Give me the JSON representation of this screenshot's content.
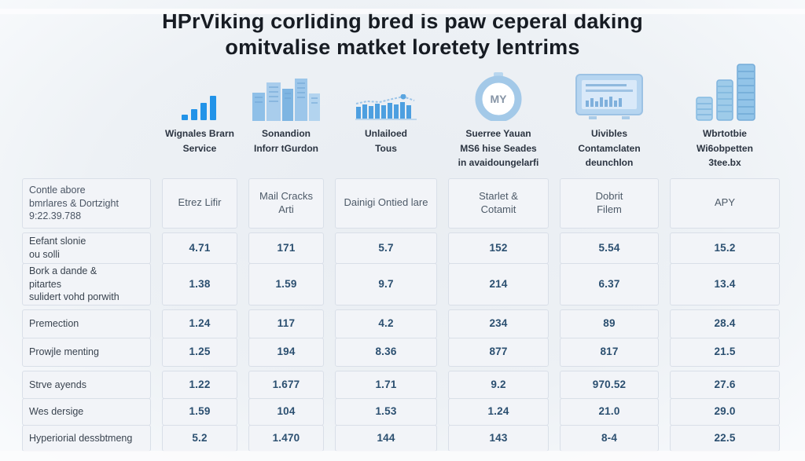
{
  "title": {
    "line1": "HPrViking corliding bred is paw ceperal daking",
    "line2": "omitvalise matket loretety lentrims"
  },
  "features": [
    {
      "name": "feature-wignales-brarn-service",
      "icon": "signal-bars-icon",
      "label": "Wignales Brarn\nService"
    },
    {
      "name": "feature-sonandion",
      "icon": "city-buildings-icon",
      "label": "Sonandion\nInforr tGurdon"
    },
    {
      "name": "feature-unlailoed-tous",
      "icon": "bar-line-chart-icon",
      "label": "Unlailoed\nTous"
    },
    {
      "name": "feature-suerree-yauan",
      "icon": "stopwatch-icon",
      "label": "Suerree Yauan\nMS6 hise Seades\nin avaidoungelarfi"
    },
    {
      "name": "feature-uivibles",
      "icon": "monitor-chart-icon",
      "label": "Uivibles\nContamclaten\ndeunchlon"
    },
    {
      "name": "feature-wbrtotbie",
      "icon": "rising-stacks-icon",
      "label": "Wbrtotbie\nWi6obpetten\n3tee.bx"
    }
  ],
  "stopwatch_text": "MY",
  "chart_data": {
    "type": "table",
    "columns": [
      "Contle abore\nbmrlares & Dortzight\n9:22.39.788",
      "Etrez Lifir",
      "Mail Cracks\nArti",
      "Dainigi Ontied lare",
      "Starlet &\nCotamit",
      "Dobrit\nFilem",
      "APY"
    ],
    "rows": [
      {
        "label": "Eefant slonie\nou solli",
        "values": [
          "4.71",
          "171",
          "5.7",
          "152",
          "5.54",
          "15.2"
        ]
      },
      {
        "label": "Bork a dande &\npitartes\nsulidert vohd porwith",
        "values": [
          "1.38",
          "1.59",
          "9.7",
          "214",
          "6.37",
          "13.4"
        ]
      },
      {
        "label": "Premection",
        "values": [
          "1.24",
          "117",
          "4.2",
          "234",
          "89",
          "28.4"
        ]
      },
      {
        "label": "Prowjle menting",
        "values": [
          "1.25",
          "194",
          "8.36",
          "877",
          "817",
          "21.5"
        ]
      },
      {
        "label": "Strve ayends",
        "values": [
          "1.22",
          "1.677",
          "1.71",
          "9.2",
          "970.52",
          "27.6"
        ]
      },
      {
        "label": "Wes dersige",
        "values": [
          "1.59",
          "104",
          "1.53",
          "1.24",
          "21.0",
          "29.0"
        ]
      },
      {
        "label": "Hyperiorial dessbtmeng",
        "values": [
          "5.2",
          "1.470",
          "144",
          "143",
          "8-4",
          "22.5"
        ]
      }
    ]
  },
  "colors": {
    "accent_blue": "#1f8fe8",
    "icon_light_blue": "#a9cdec",
    "value_text": "#2b4f70",
    "cell_background": "#f2f4f8",
    "cell_border": "#d9dfe8"
  }
}
